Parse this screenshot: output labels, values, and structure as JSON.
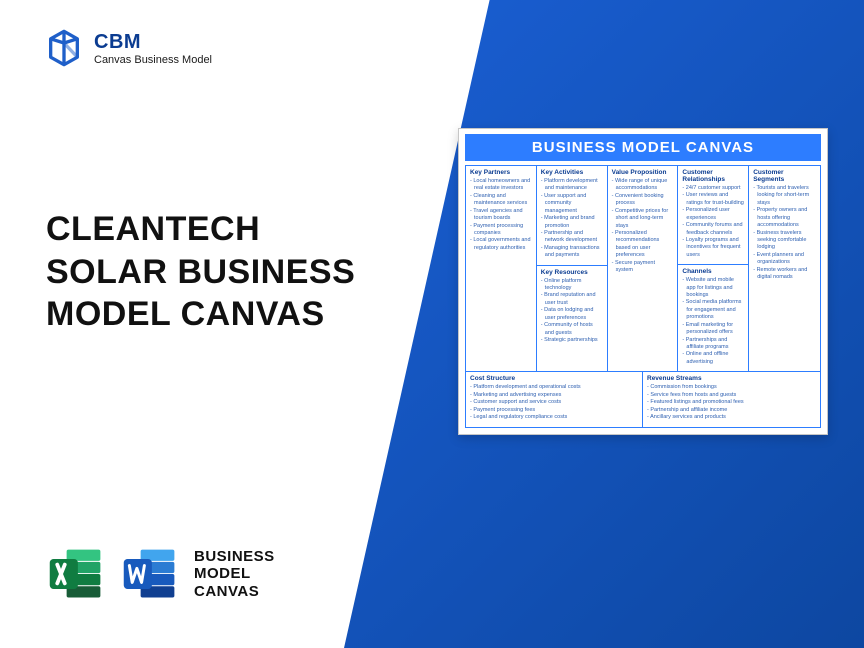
{
  "colors": {
    "brand_blue": "#0b3c91",
    "accent_blue": "#2d7dff",
    "bg_gradient_from": "#1a5fd4",
    "bg_gradient_to": "#0d47a1",
    "text_dark": "#111111",
    "cell_text": "#2d5fb0",
    "card_border": "#c6c6c6"
  },
  "brand": {
    "abbr": "CBM",
    "subtitle": "Canvas Business Model"
  },
  "title": {
    "line1": "CLEANTECH",
    "line2": "SOLAR BUSINESS",
    "line3": "MODEL CANVAS"
  },
  "footer": {
    "label_line1": "BUSINESS",
    "label_line2": "MODEL",
    "label_line3": "CANVAS",
    "icons": [
      "excel-icon",
      "word-icon"
    ]
  },
  "canvas": {
    "title": "BUSINESS MODEL CANVAS",
    "top": [
      {
        "blocks": [
          {
            "heading": "Key Partners",
            "items": [
              "Local homeowners and real estate investors",
              "Cleaning and maintenance services",
              "Travel agencies and tourism boards",
              "Payment processing companies",
              "Local governments and regulatory authorities"
            ]
          }
        ]
      },
      {
        "blocks": [
          {
            "heading": "Key Activities",
            "items": [
              "Platform development and maintenance",
              "User support and community management",
              "Marketing and brand promotion",
              "Partnership and network development",
              "Managing transactions and payments"
            ]
          },
          {
            "heading": "Key Resources",
            "items": [
              "Online platform technology",
              "Brand reputation and user trust",
              "Data on lodging and user preferences",
              "Community of hosts and guests",
              "Strategic partnerships"
            ]
          }
        ]
      },
      {
        "blocks": [
          {
            "heading": "Value Proposition",
            "items": [
              "Wide range of unique accommodations",
              "Convenient booking process",
              "Competitive prices for short and long-term stays",
              "Personalized recommendations based on user preferences",
              "Secure payment system"
            ]
          }
        ]
      },
      {
        "blocks": [
          {
            "heading": "Customer Relationships",
            "items": [
              "24/7 customer support",
              "User reviews and ratings for trust-building",
              "Personalized user experiences",
              "Community forums and feedback channels",
              "Loyalty programs and incentives for frequent users"
            ]
          },
          {
            "heading": "Channels",
            "items": [
              "Website and mobile app for listings and bookings",
              "Social media platforms for engagement and promotions",
              "Email marketing for personalized offers",
              "Partnerships and affiliate programs",
              "Online and offline advertising"
            ]
          }
        ]
      },
      {
        "blocks": [
          {
            "heading": "Customer Segments",
            "items": [
              "Tourists and travelers looking for short-term stays",
              "Property owners and hosts offering accommodations",
              "Business travelers seeking comfortable lodging",
              "Event planners and organizations",
              "Remote workers and digital nomads"
            ]
          }
        ]
      }
    ],
    "bottom": [
      {
        "heading": "Cost Structure",
        "items": [
          "Platform development and operational costs",
          "Marketing and advertising expenses",
          "Customer support and service costs",
          "Payment processing fees",
          "Legal and regulatory compliance costs"
        ]
      },
      {
        "heading": "Revenue Streams",
        "items": [
          "Commission from bookings",
          "Service fees from hosts and guests",
          "Featured listings and promotional fees",
          "Partnership and affiliate income",
          "Ancillary services and products"
        ]
      }
    ]
  }
}
